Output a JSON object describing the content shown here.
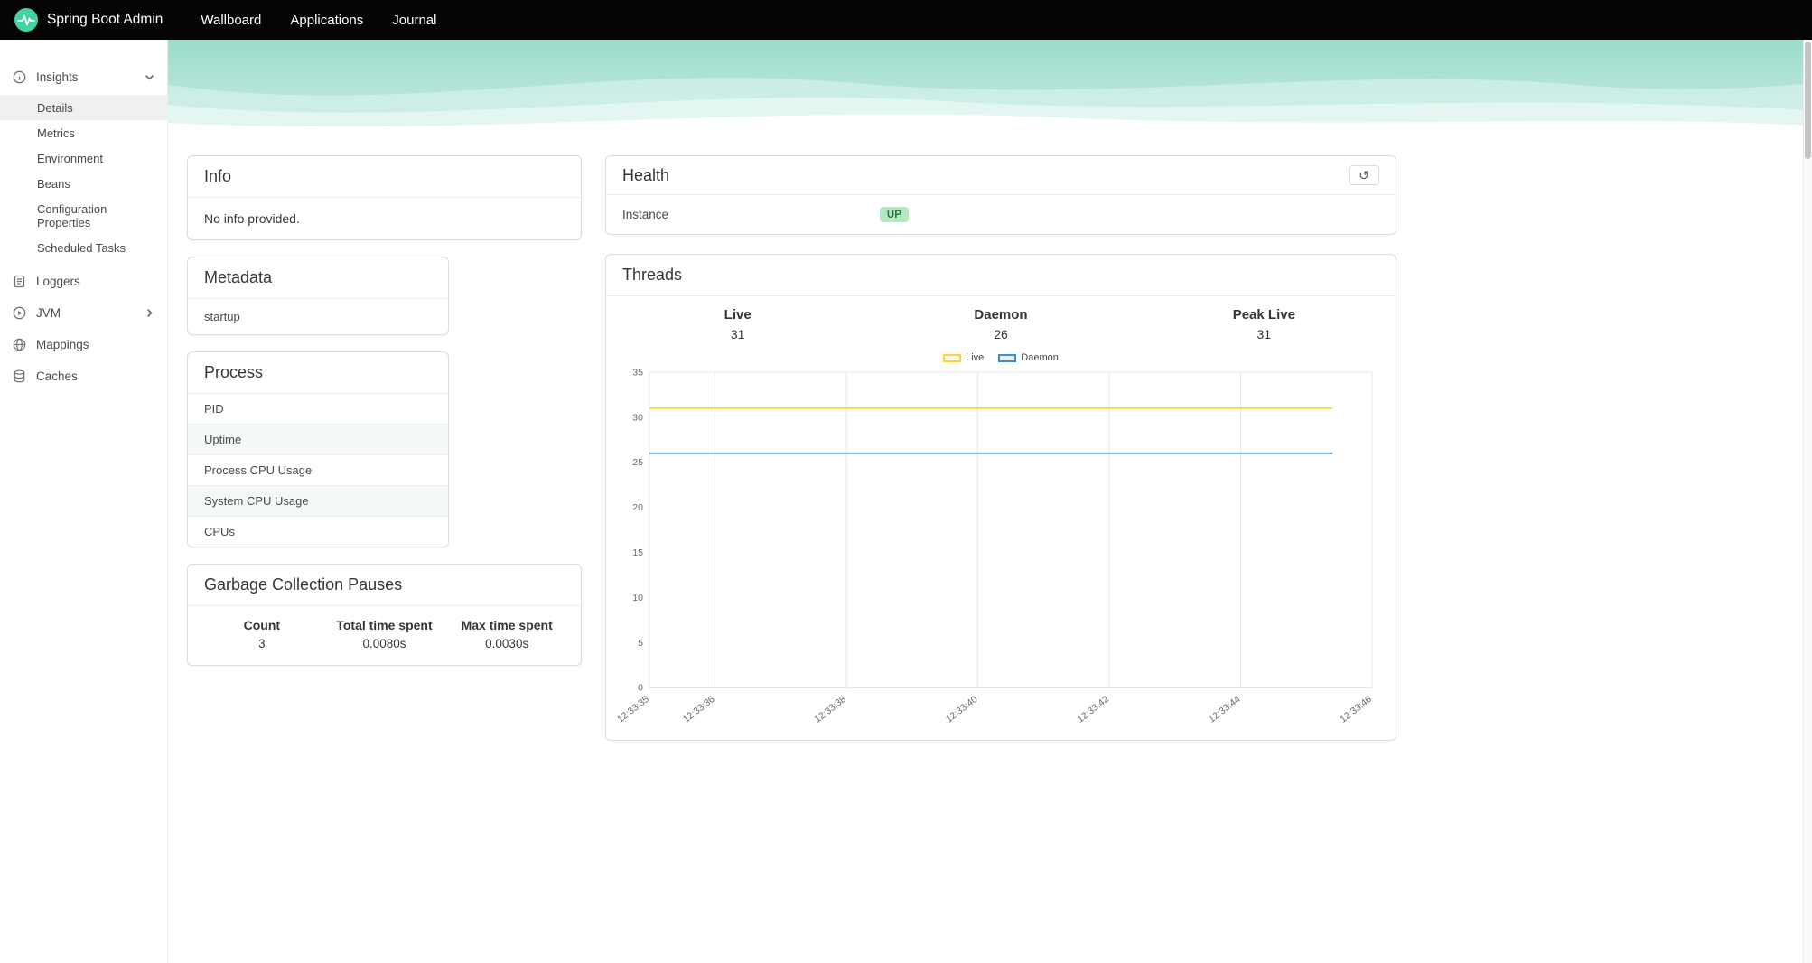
{
  "navbar": {
    "brand": "Spring Boot Admin",
    "items": [
      {
        "label": "Wallboard"
      },
      {
        "label": "Applications"
      },
      {
        "label": "Journal"
      }
    ]
  },
  "sidebar": {
    "insights": {
      "label": "Insights"
    },
    "insights_children": [
      {
        "label": "Details",
        "active": true
      },
      {
        "label": "Metrics"
      },
      {
        "label": "Environment"
      },
      {
        "label": "Beans"
      },
      {
        "label": "Configuration Properties"
      },
      {
        "label": "Scheduled Tasks"
      }
    ],
    "items": [
      {
        "label": "Loggers"
      },
      {
        "label": "JVM"
      },
      {
        "label": "Mappings"
      },
      {
        "label": "Caches"
      }
    ]
  },
  "cards": {
    "info": {
      "title": "Info",
      "message": "No info provided."
    },
    "metadata": {
      "title": "Metadata",
      "rows": [
        {
          "key": "startup",
          "value": ""
        }
      ]
    },
    "process": {
      "title": "Process",
      "rows": [
        {
          "label": "PID",
          "value": ""
        },
        {
          "label": "Uptime",
          "value": ""
        },
        {
          "label": "Process CPU Usage",
          "value": ""
        },
        {
          "label": "System CPU Usage",
          "value": ""
        },
        {
          "label": "CPUs",
          "value": ""
        }
      ]
    },
    "gc": {
      "title": "Garbage Collection Pauses",
      "headers": [
        "Count",
        "Total time spent",
        "Max time spent"
      ],
      "values": [
        "3",
        "0.0080s",
        "0.0030s"
      ]
    },
    "health": {
      "title": "Health",
      "instance_label": "Instance",
      "instance_status": "UP"
    },
    "threads": {
      "title": "Threads",
      "stats": [
        {
          "label": "Live",
          "value": "31"
        },
        {
          "label": "Daemon",
          "value": "26"
        },
        {
          "label": "Peak Live",
          "value": "31"
        }
      ]
    }
  },
  "colors": {
    "brand": "#42d3a5",
    "status_up_bg": "#b3e9c1",
    "status_up_text": "#257942"
  },
  "chart_data": {
    "type": "line",
    "title": "Threads",
    "xlabel": "",
    "ylabel": "",
    "ylim": [
      0,
      35
    ],
    "xlim": [
      0,
      11
    ],
    "y_ticks": [
      0,
      5,
      10,
      15,
      20,
      25,
      30,
      35
    ],
    "x_ticks": [
      {
        "label": "12:33:35",
        "sec": 0
      },
      {
        "label": "12:33:36",
        "sec": 1
      },
      {
        "label": "12:33:38",
        "sec": 3
      },
      {
        "label": "12:33:40",
        "sec": 5
      },
      {
        "label": "12:33:42",
        "sec": 7
      },
      {
        "label": "12:33:44",
        "sec": 9
      },
      {
        "label": "12:33:46",
        "sec": 11
      }
    ],
    "grid": "vertical",
    "legend_position": "top-center",
    "series": [
      {
        "name": "Live",
        "color": "#ffd43b",
        "points": [
          [
            0,
            31
          ],
          [
            10.4,
            31
          ]
        ]
      },
      {
        "name": "Daemon",
        "color": "#3e8ed0",
        "points": [
          [
            0,
            26
          ],
          [
            10.4,
            26
          ]
        ]
      }
    ]
  }
}
